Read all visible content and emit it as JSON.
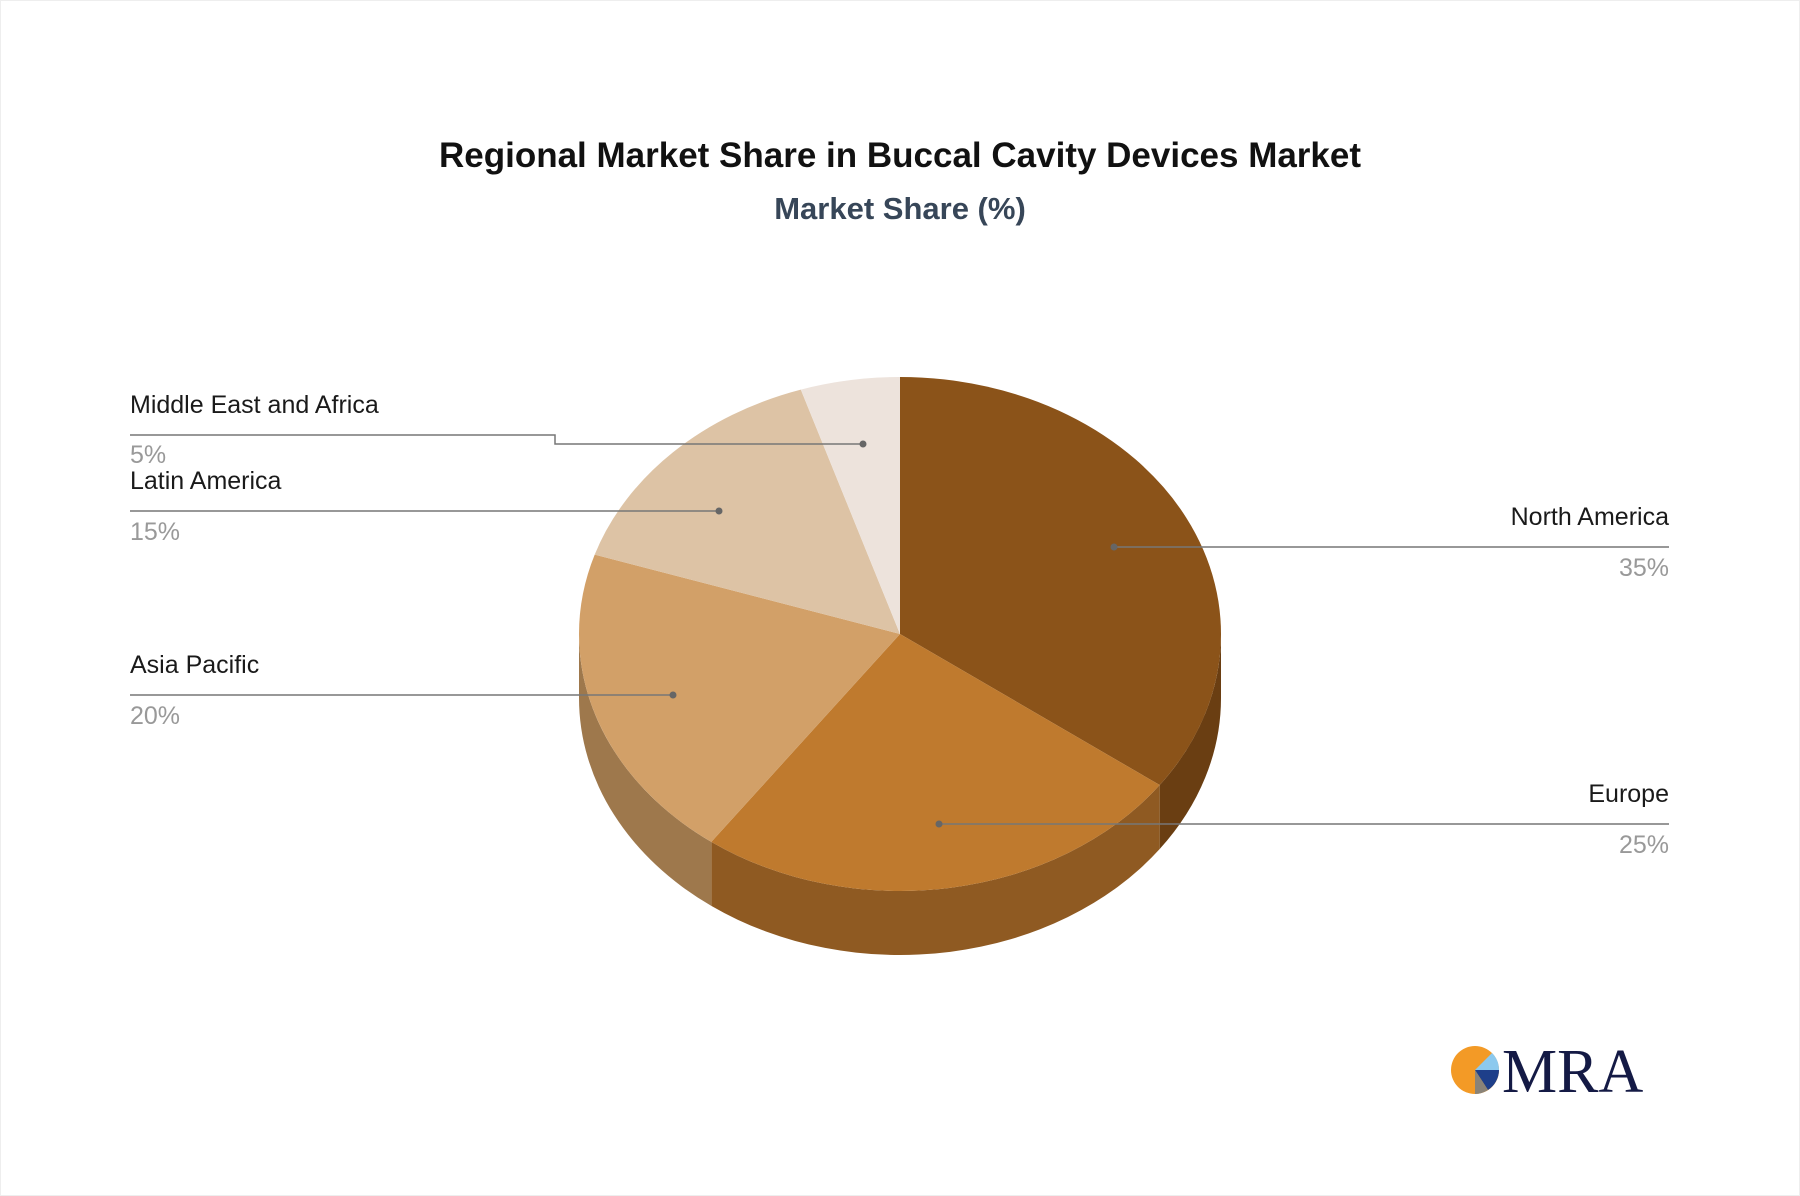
{
  "chart_data": {
    "type": "pie",
    "title": "Regional Market Share in Buccal Cavity Devices Market",
    "subtitle": "Market Share (%)",
    "series": [
      {
        "label": "North America",
        "value": 35,
        "value_label": "35%",
        "color": "#8B5319",
        "side_color": "#6A3E12"
      },
      {
        "label": "Europe",
        "value": 25,
        "value_label": "25%",
        "color": "#BF7A2E",
        "side_color": "#8F5A22"
      },
      {
        "label": "Asia Pacific",
        "value": 20,
        "value_label": "20%",
        "color": "#D2A068",
        "side_color": "#9E784C"
      },
      {
        "label": "Latin America",
        "value": 15,
        "value_label": "15%",
        "color": "#DDC3A5",
        "side_color": "#A8937B"
      },
      {
        "label": "Middle East and Africa",
        "value": 5,
        "value_label": "5%",
        "color": "#EDE3DC",
        "side_color": "#B3AAA4"
      }
    ],
    "style": "3d-pie",
    "legend": "leader-line labels"
  },
  "logo": {
    "text": "MRA"
  }
}
